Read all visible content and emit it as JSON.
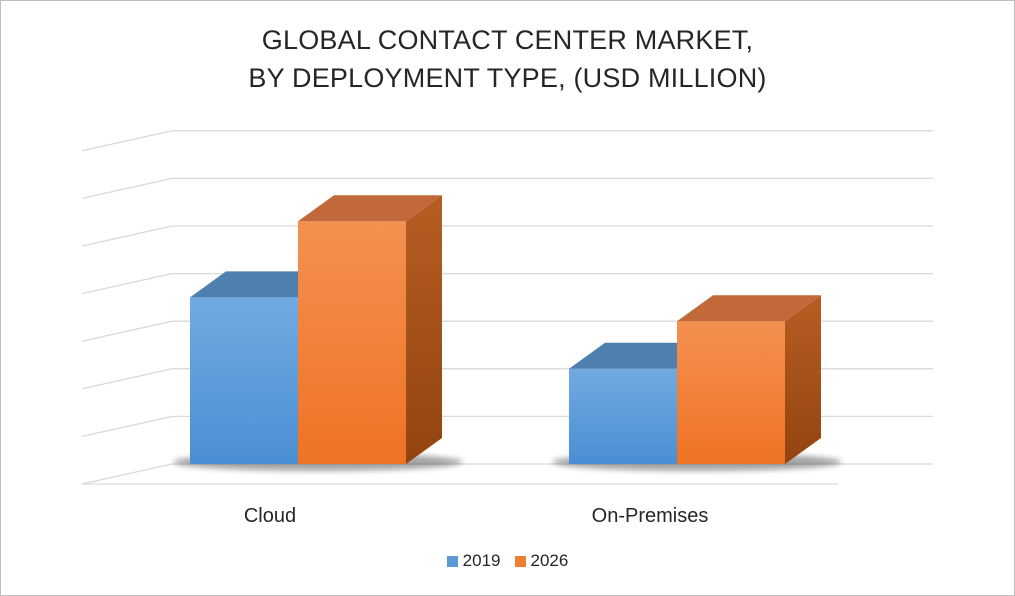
{
  "chart_data": {
    "type": "bar",
    "title_line1": "GLOBAL CONTACT CENTER MARKET,",
    "title_line2": "BY DEPLOYMENT TYPE, (USD MILLION)",
    "categories": [
      "Cloud",
      "On-Premises"
    ],
    "series": [
      {
        "name": "2019",
        "values": [
          3.5,
          2.0
        ],
        "color": "#5b9bd5"
      },
      {
        "name": "2026",
        "values": [
          5.1,
          3.0
        ],
        "color": "#ed7d31"
      }
    ],
    "ylim": [
      0,
      7
    ],
    "grid": true,
    "legend_position": "bottom",
    "style": "3d-column"
  }
}
